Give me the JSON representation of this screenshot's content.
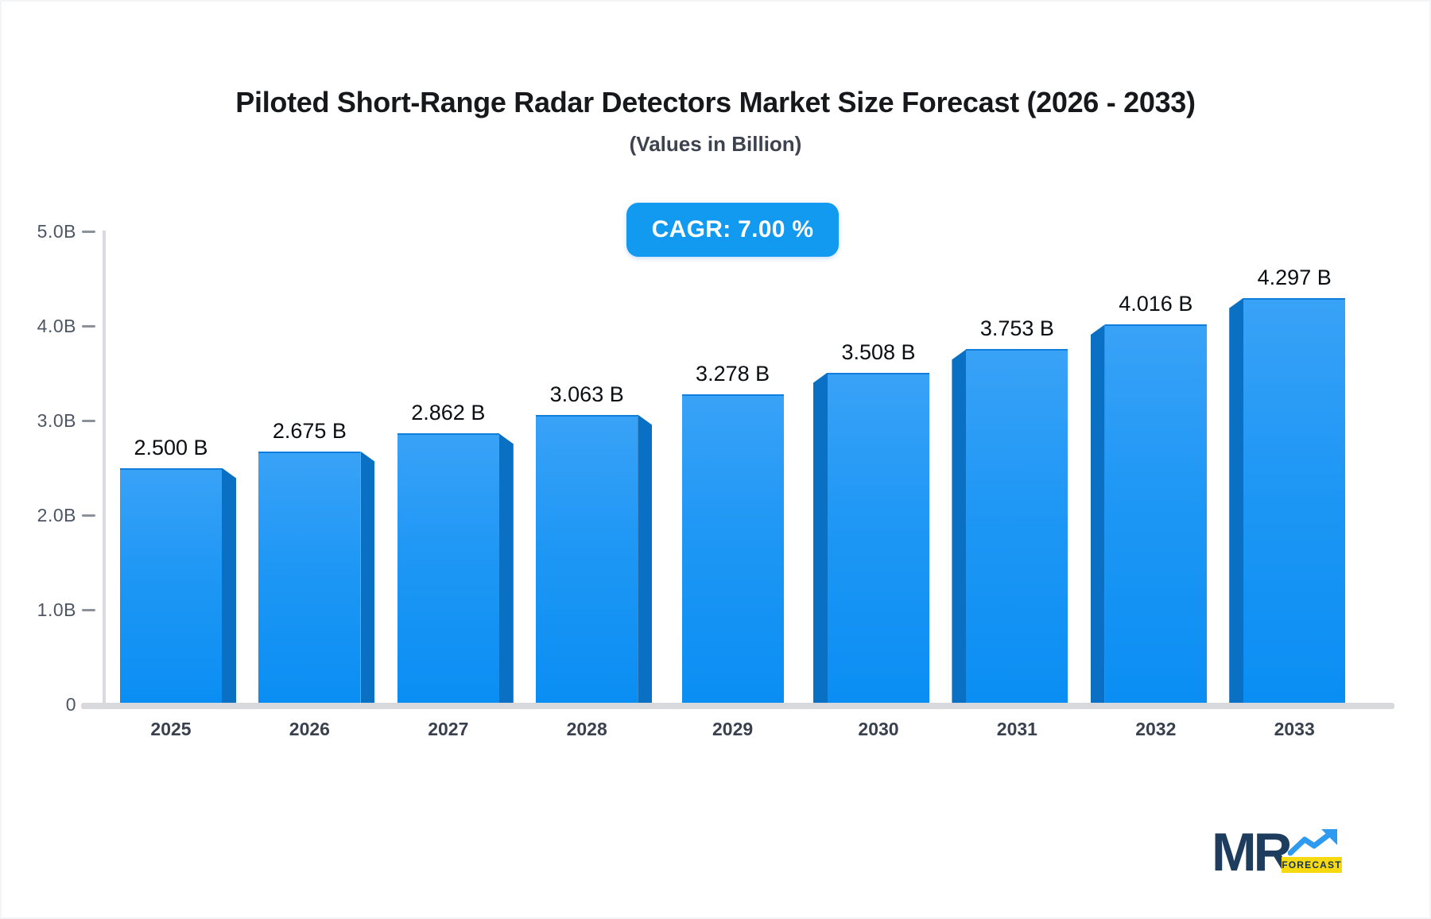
{
  "title": "Piloted Short-Range Radar Detectors Market Size Forecast (2026 - 2033)",
  "subtitle": "(Values in Billion)",
  "cagr_label": "CAGR: 7.00 %",
  "chart_data": {
    "type": "bar",
    "title": "Piloted Short-Range Radar Detectors Market Size Forecast (2026 - 2033)",
    "subtitle": "(Values in Billion)",
    "categories": [
      "2025",
      "2026",
      "2027",
      "2028",
      "2029",
      "2030",
      "2031",
      "2032",
      "2033"
    ],
    "values": [
      2.5,
      2.675,
      2.862,
      3.063,
      3.278,
      3.508,
      3.753,
      4.016,
      4.297
    ],
    "bar_labels": [
      "2.500 B",
      "2.675 B",
      "2.862 B",
      "3.063 B",
      "3.278 B",
      "3.508 B",
      "3.753 B",
      "4.016 B",
      "4.297 B"
    ],
    "y_ticks": [
      {
        "label": "5.0B",
        "value": 5
      },
      {
        "label": "4.0B",
        "value": 4
      },
      {
        "label": "3.0B",
        "value": 3
      },
      {
        "label": "2.0B",
        "value": 2
      },
      {
        "label": "1.0B",
        "value": 1
      },
      {
        "label": "0",
        "value": 0
      }
    ],
    "ylim": [
      0,
      5
    ],
    "grid": false,
    "legend": "none",
    "annotation": "CAGR: 7.00 %",
    "colors": {
      "bar_face_top": "#39a2f7",
      "bar_face_bottom": "#0a8ef3",
      "bar_side": "#0a70c4",
      "badge_blue": "#129af0",
      "axis_gray": "#d8dade",
      "label_dark": "#0b0e12"
    }
  },
  "logo": {
    "mr": "MR",
    "forecast": "FORECAST",
    "navy": "#1d3c5e",
    "yellow": "#f6da0f",
    "arrow_blue": "#2e9af0"
  }
}
